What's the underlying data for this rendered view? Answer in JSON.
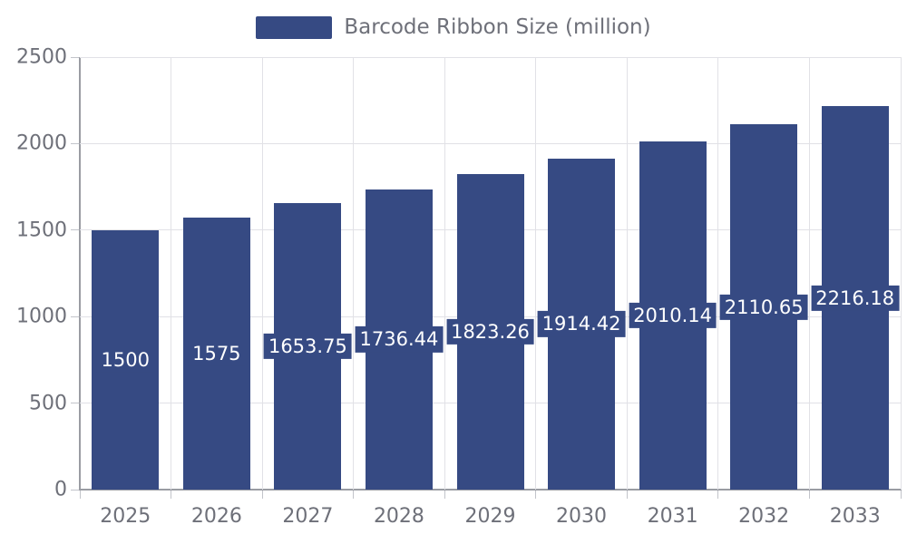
{
  "legend": {
    "label": "Barcode Ribbon Size (million)"
  },
  "chart_data": {
    "type": "bar",
    "title": "",
    "categories": [
      "2025",
      "2026",
      "2027",
      "2028",
      "2029",
      "2030",
      "2031",
      "2032",
      "2033"
    ],
    "series": [
      {
        "name": "Barcode Ribbon Size (million)",
        "values": [
          1500,
          1575,
          1653.75,
          1736.44,
          1823.26,
          1914.42,
          2010.14,
          2110.65,
          2216.18
        ]
      }
    ],
    "xlabel": "",
    "ylabel": "",
    "ylim": [
      0,
      2500
    ],
    "y_ticks": [
      0,
      500,
      1000,
      1500,
      2000,
      2500
    ],
    "grid": true,
    "legend_position": "top-center",
    "value_labels": "inside-middle-white"
  },
  "colors": {
    "background": "#FFFFFF",
    "bar": "#364A83",
    "axis_text": "#6E7079",
    "legend_text": "#6E7079",
    "axis_line": "#9A9CA3",
    "gridline": "#E1E1E6",
    "tick": "#C2C4CA",
    "value_label_text": "#FFFFFF"
  }
}
